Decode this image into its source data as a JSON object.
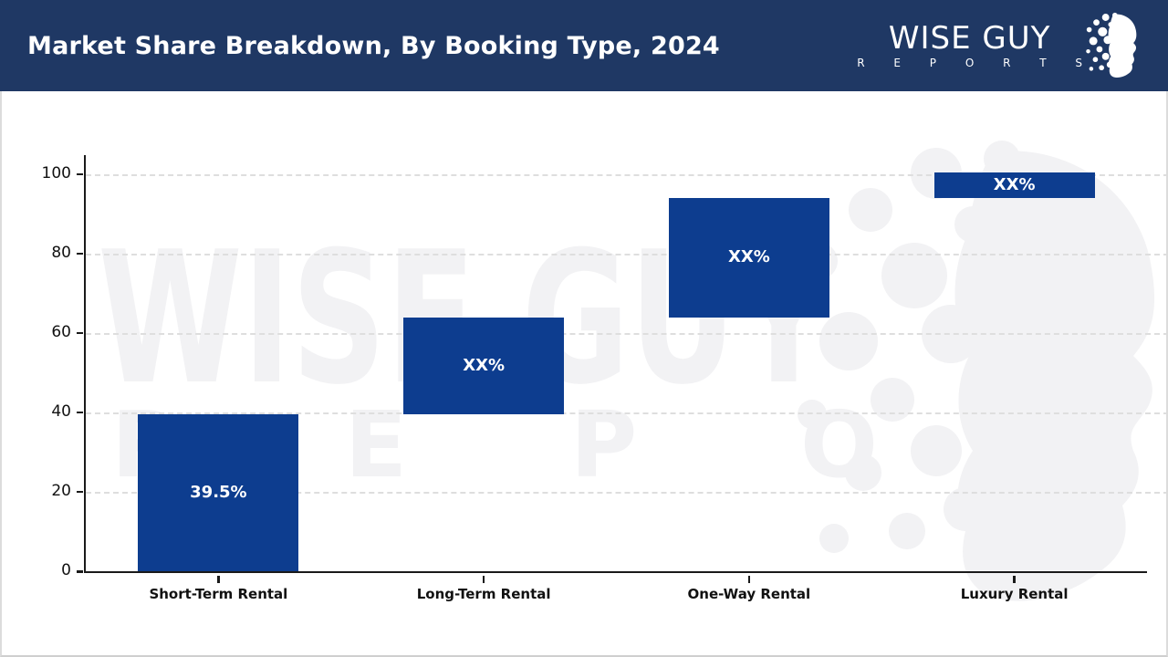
{
  "header": {
    "title": "Market Share Breakdown, By Booking Type, 2024",
    "logo": {
      "line1": "WISE GUY",
      "line2": "R E P O R T S"
    }
  },
  "watermark": {
    "line1": "WISE GUY",
    "line2": "R E P O R T S"
  },
  "chart_data": {
    "type": "bar",
    "variant": "waterfall",
    "title": "Market Share Breakdown, By Booking Type, 2024",
    "categories": [
      "Short-Term Rental",
      "Long-Term Rental",
      "One-Way Rental",
      "Luxury Rental"
    ],
    "segments": [
      {
        "category": "Short-Term Rental",
        "start": 0,
        "end": 39.5,
        "label": "39.5%"
      },
      {
        "category": "Long-Term Rental",
        "start": 39.5,
        "end": 64,
        "label": "XX%"
      },
      {
        "category": "One-Way Rental",
        "start": 64,
        "end": 94,
        "label": "XX%"
      },
      {
        "category": "Luxury Rental",
        "start": 94,
        "end": 100.5,
        "label": "XX%"
      }
    ],
    "yticks": [
      0,
      20,
      40,
      60,
      80,
      100
    ],
    "ylim": [
      0,
      104.8
    ],
    "grid": {
      "horizontal": true,
      "style": "dashed",
      "color": "#dedede"
    },
    "legend": "none",
    "bar_color": "#0d3d8f",
    "bar_label_color": "#ffffff",
    "axis_color": "#1a1a1a",
    "header_color": "#1f3864"
  }
}
